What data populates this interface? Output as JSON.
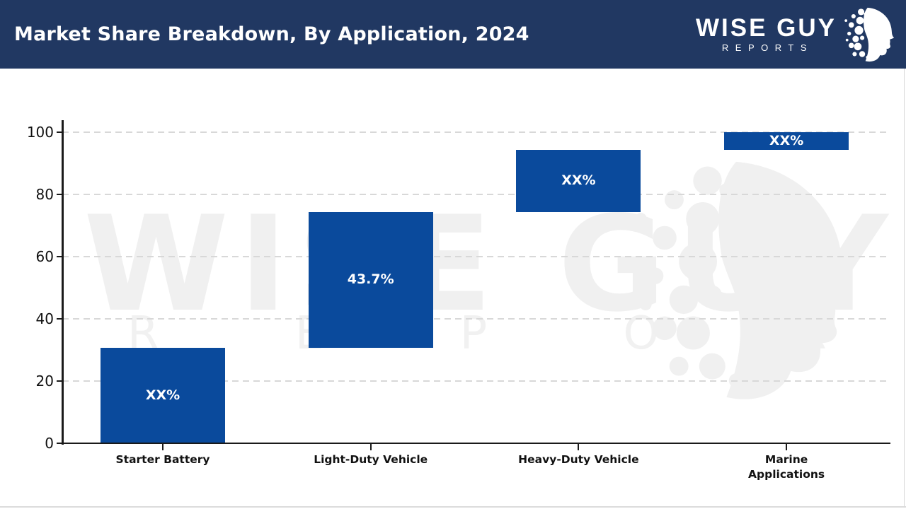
{
  "header": {
    "title": "Market Share Breakdown, By Application, 2024",
    "bg_color": "#213862",
    "logo_line1": "WISE GUY",
    "logo_line2": "REPORTS"
  },
  "watermark": {
    "line1": "WISE GUY",
    "line2": "R E P O R T S"
  },
  "chart_data": {
    "type": "bar",
    "subtype": "stacked-waterfall",
    "title": "Market Share Breakdown, By Application, 2024",
    "categories": [
      "Starter Battery",
      "Light-Duty Vehicle",
      "Heavy-Duty Vehicle",
      "Marine\nApplications"
    ],
    "segments": [
      {
        "category": "Starter Battery",
        "start": 0,
        "end": 30.6,
        "label": "XX%"
      },
      {
        "category": "Light-Duty Vehicle",
        "start": 30.6,
        "end": 74.3,
        "label": "43.7%"
      },
      {
        "category": "Heavy-Duty Vehicle",
        "start": 74.3,
        "end": 94.4,
        "label": "XX%"
      },
      {
        "category": "Marine Applications",
        "start": 94.4,
        "end": 100,
        "label": "XX%"
      }
    ],
    "y_ticks": [
      0,
      20,
      40,
      60,
      80,
      100
    ],
    "ylim": [
      0,
      103.5
    ],
    "xlabel": "",
    "ylabel": "",
    "bar_color": "#0a4a9c",
    "bar_label_color": "#ffffff",
    "axis_color": "#1a1a1a",
    "grid_color": "#d8d8d8",
    "grid_style": "dashed-horizontal",
    "legend": "none"
  }
}
